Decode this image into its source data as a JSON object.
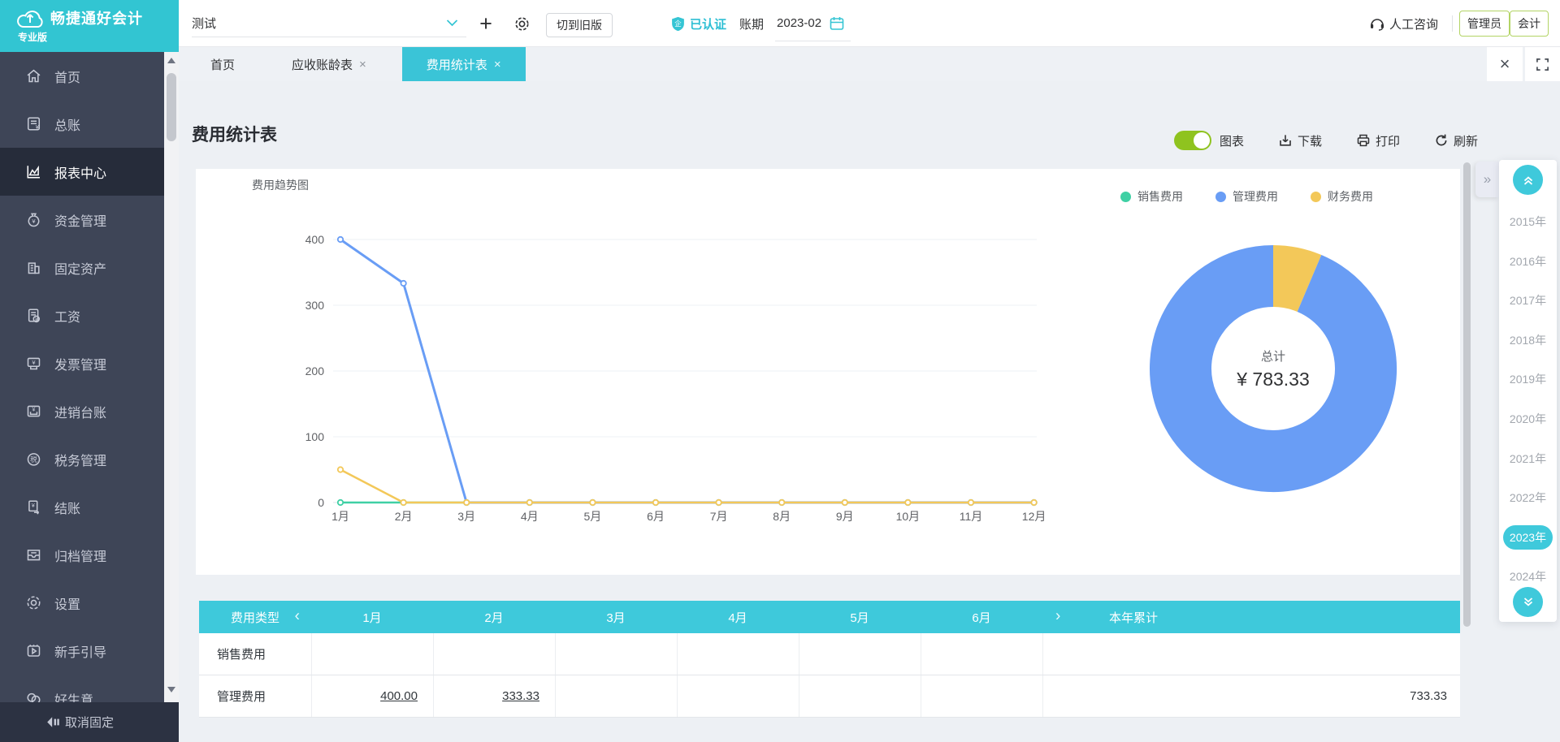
{
  "brand": {
    "title": "畅捷通好会计",
    "edition": "专业版"
  },
  "topbar": {
    "account_set": "测试",
    "switch_old_label": "切到旧版",
    "certified_label": "已认证",
    "certified_glyph": "企",
    "period_label": "账期",
    "period_value": "2023-02",
    "support_label": "人工咨询",
    "roles": [
      "管理员",
      "会计"
    ]
  },
  "tabs": [
    {
      "label": "首页",
      "closable": false,
      "active": false
    },
    {
      "label": "应收账龄表",
      "closable": true,
      "active": false
    },
    {
      "label": "费用统计表",
      "closable": true,
      "active": true
    }
  ],
  "sidebar": {
    "items": [
      {
        "key": "home",
        "label": "首页",
        "icon": "home-icon",
        "active": false
      },
      {
        "key": "general-ledger",
        "label": "总账",
        "icon": "ledger-icon",
        "active": false
      },
      {
        "key": "report-center",
        "label": "报表中心",
        "icon": "report-icon",
        "active": true
      },
      {
        "key": "funds",
        "label": "资金管理",
        "icon": "funds-icon",
        "active": false
      },
      {
        "key": "fixed-assets",
        "label": "固定资产",
        "icon": "assets-icon",
        "active": false
      },
      {
        "key": "payroll",
        "label": "工资",
        "icon": "payroll-icon",
        "active": false
      },
      {
        "key": "invoice",
        "label": "发票管理",
        "icon": "invoice-icon",
        "active": false
      },
      {
        "key": "purchase-sales",
        "label": "进销台账",
        "icon": "purchase-sales-icon",
        "active": false
      },
      {
        "key": "tax",
        "label": "税务管理",
        "icon": "tax-icon",
        "active": false
      },
      {
        "key": "closing",
        "label": "结账",
        "icon": "closing-icon",
        "active": false
      },
      {
        "key": "archive",
        "label": "归档管理",
        "icon": "archive-icon",
        "active": false
      },
      {
        "key": "settings",
        "label": "设置",
        "icon": "settings-icon",
        "active": false
      },
      {
        "key": "guide",
        "label": "新手引导",
        "icon": "guide-icon",
        "active": false
      },
      {
        "key": "haoshengyi",
        "label": "好生意",
        "icon": "coins-icon",
        "active": false
      }
    ],
    "unpin_label": "取消固定"
  },
  "page": {
    "title": "费用统计表",
    "controls": {
      "chart_toggle_label": "图表",
      "toggle_on": true,
      "download": "下载",
      "print": "打印",
      "refresh": "刷新"
    }
  },
  "chart_data": [
    {
      "type": "line",
      "title": "费用趋势图",
      "x": [
        "1月",
        "2月",
        "3月",
        "4月",
        "5月",
        "6月",
        "7月",
        "8月",
        "9月",
        "10月",
        "11月",
        "12月"
      ],
      "series": [
        {
          "name": "销售费用",
          "color": "#3fd0a4",
          "values": [
            0,
            0,
            0,
            0,
            0,
            0,
            0,
            0,
            0,
            0,
            0,
            0
          ]
        },
        {
          "name": "管理费用",
          "color": "#699df5",
          "values": [
            400,
            333.33,
            0,
            0,
            0,
            0,
            0,
            0,
            0,
            0,
            0,
            0
          ]
        },
        {
          "name": "财务费用",
          "color": "#f3c859",
          "values": [
            50,
            0,
            0,
            0,
            0,
            0,
            0,
            0,
            0,
            0,
            0,
            0
          ]
        }
      ],
      "ylim": [
        0,
        400
      ],
      "yticks": [
        0,
        100,
        200,
        300,
        400
      ],
      "legend_position": "top-right",
      "grid": true
    },
    {
      "type": "pie",
      "center_label": "总计",
      "center_value": "¥ 783.33",
      "slices": [
        {
          "name": "财务费用",
          "value": 50,
          "color": "#f3c859"
        },
        {
          "name": "管理费用",
          "value": 733.33,
          "color": "#699df5"
        },
        {
          "name": "销售费用",
          "value": 0,
          "color": "#3fd0a4"
        }
      ]
    }
  ],
  "table": {
    "columns": [
      "费用类型",
      "1月",
      "2月",
      "3月",
      "4月",
      "5月",
      "6月",
      "本年累计"
    ],
    "rows": [
      {
        "label": "销售费用",
        "values": [
          "",
          "",
          "",
          "",
          "",
          "",
          ""
        ],
        "links": [
          false,
          false,
          false,
          false,
          false,
          false,
          false
        ]
      },
      {
        "label": "管理费用",
        "values": [
          "400.00",
          "333.33",
          "",
          "",
          "",
          "",
          "733.33"
        ],
        "links": [
          true,
          true,
          false,
          false,
          false,
          false,
          false
        ]
      }
    ]
  },
  "year_panel": {
    "years": [
      "2015年",
      "2016年",
      "2017年",
      "2018年",
      "2019年",
      "2020年",
      "2021年",
      "2022年",
      "2023年",
      "2024年"
    ],
    "selected": "2023年"
  },
  "icons": {
    "collapse_double_chevron": "»",
    "table_prev": "‹",
    "table_next": "›",
    "tab_close": "×",
    "window_close": "×",
    "add": "+"
  },
  "colors": {
    "brand_teal": "#32c5d2",
    "accent_cyan": "#3ec9db",
    "toggle_green": "#8fc31f",
    "role_border_green": "#b3d465",
    "series_green": "#3fd0a4",
    "series_blue": "#699df5",
    "series_yellow": "#f3c859"
  }
}
